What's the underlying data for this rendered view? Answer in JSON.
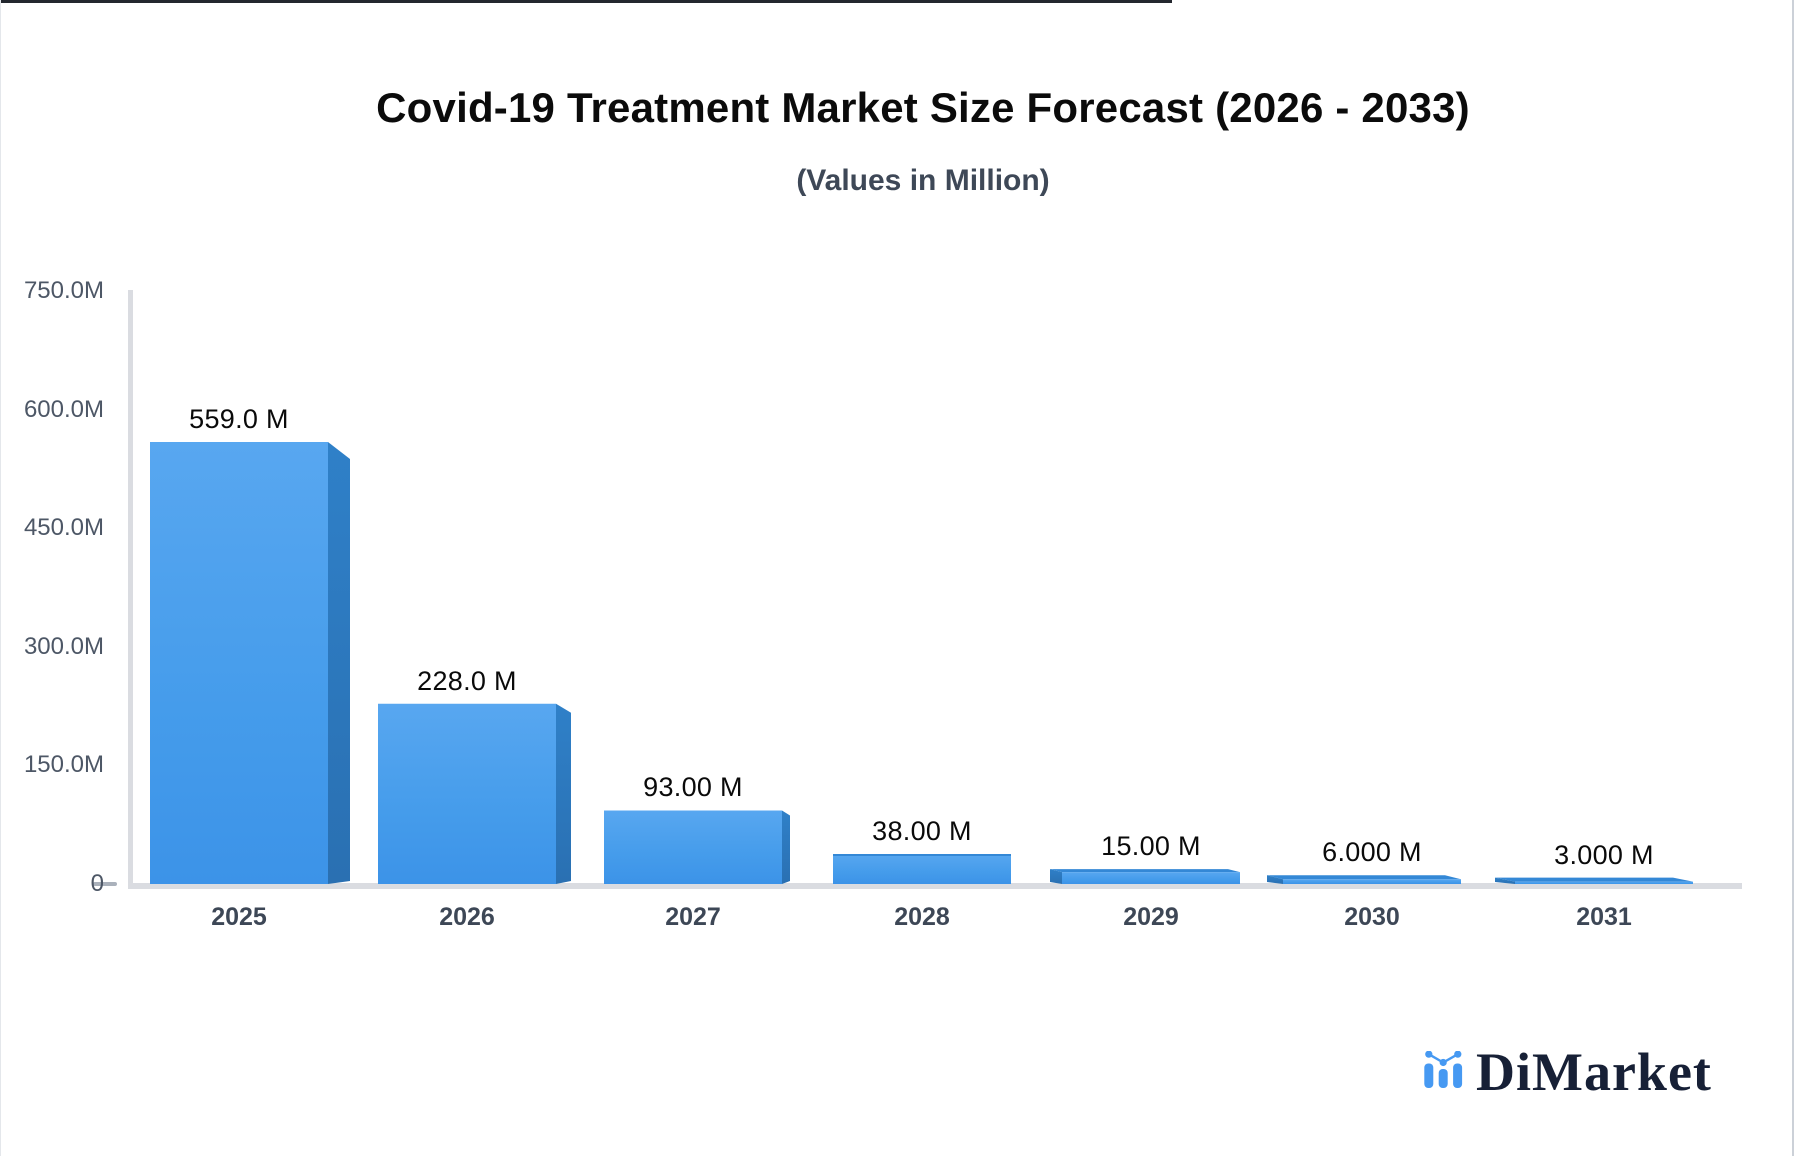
{
  "title": "Covid-19 Treatment Market Size Forecast (2026 - 2033)",
  "subtitle": "(Values in Million)",
  "watermark": {
    "brand": "DiMarket"
  },
  "chart_data": {
    "type": "bar",
    "title": "Covid-19 Treatment Market Size Forecast (2026 - 2033)",
    "subtitle": "(Values in Million)",
    "xlabel": "",
    "ylabel": "",
    "unit": "Million",
    "categories": [
      "2025",
      "2026",
      "2027",
      "2028",
      "2029",
      "2030",
      "2031"
    ],
    "values": [
      559,
      228,
      93,
      38,
      15,
      6,
      3
    ],
    "bar_labels": [
      "559.0 M",
      "228.0 M",
      "93.00 M",
      "38.00 M",
      "15.00 M",
      "6.000 M",
      "3.000 M"
    ],
    "ytick_labels": [
      "750.0M",
      "600.0M",
      "450.0M",
      "300.0M",
      "150.0M",
      "0"
    ],
    "ytick_values": [
      750,
      600,
      450,
      300,
      150,
      0
    ],
    "ylim": [
      0,
      750
    ],
    "grid": false,
    "legend": "none",
    "style_3d": true,
    "colors": {
      "bar_face_top": "#58a7f0",
      "bar_face_bottom": "#3c93e8",
      "bar_side": "#2d7ac0",
      "bar_side_dark": "#2a70b2",
      "bar_top_face": "#3488d6",
      "axis_line": "#dadce1",
      "ytick_text": "#4d5766",
      "xtick_text": "#3d4756",
      "value_text": "#0a0a0a",
      "logo_blue": "#4699f2",
      "logo_navy": "#172036"
    }
  }
}
